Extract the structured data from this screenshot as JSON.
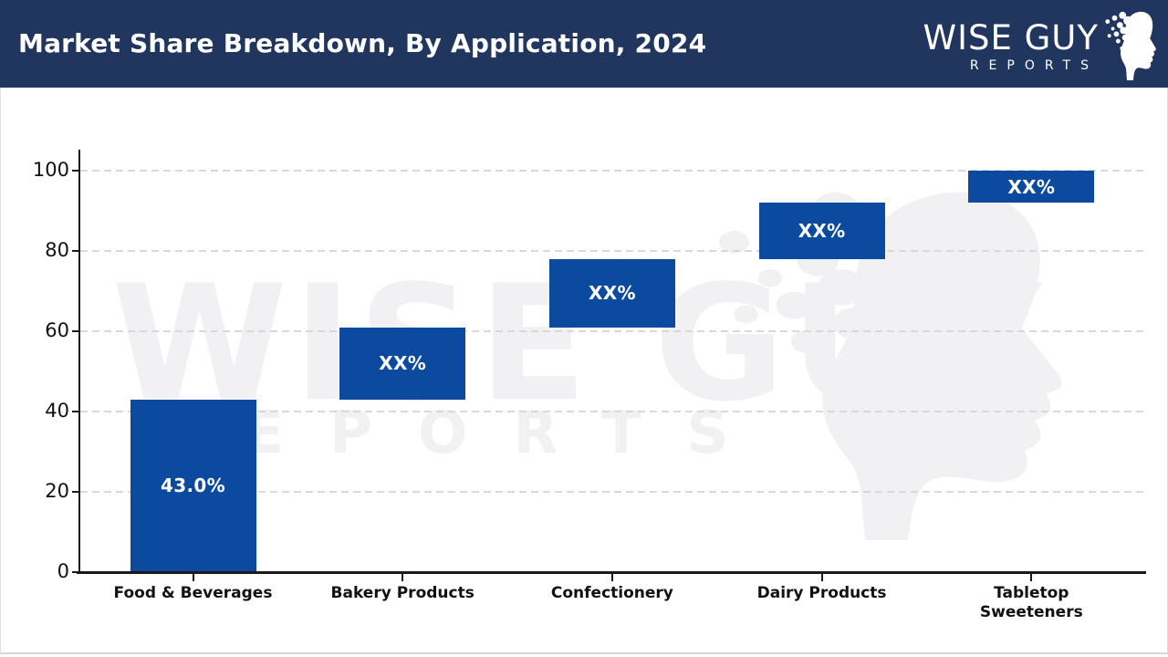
{
  "header": {
    "title": "Market Share Breakdown, By Application, 2024",
    "logo": {
      "line1": "WISE GUY",
      "line2": "REPORTS"
    }
  },
  "watermark": {
    "line1": "WISE GUY",
    "line2": "REPORTS"
  },
  "colors": {
    "header_bg": "#21365e",
    "bar_blue": "#0b4a9e",
    "bar_label": "#ffffff",
    "watermark_gray": "#f1f1f3",
    "gridline_gray": "#d9d9d9",
    "axis_black": "#1a1a1a"
  },
  "chart_data": {
    "type": "bar",
    "subtype": "floating-waterfall",
    "title": "Market Share Breakdown, By Application, 2024",
    "xlabel": "",
    "ylabel": "",
    "ylim": [
      0,
      105
    ],
    "yticks": [
      0,
      20,
      40,
      60,
      80,
      100
    ],
    "grid": "horizontal-dashed",
    "legend": "none",
    "bar_color": "#0b4a9e",
    "categories": [
      "Food & Beverages",
      "Bakery Products",
      "Confectionery",
      "Dairy Products",
      "Tabletop Sweeteners"
    ],
    "bars": [
      {
        "category": "Food & Beverages",
        "start": 0,
        "end": 43,
        "value": 43.0,
        "label": "43.0%"
      },
      {
        "category": "Bakery Products",
        "start": 43,
        "end": 61,
        "value": 18.0,
        "label": "XX%"
      },
      {
        "category": "Confectionery",
        "start": 61,
        "end": 78,
        "value": 17.0,
        "label": "XX%"
      },
      {
        "category": "Dairy Products",
        "start": 78,
        "end": 92,
        "value": 14.0,
        "label": "XX%"
      },
      {
        "category": "Tabletop Sweeteners",
        "start": 92,
        "end": 100,
        "value": 8.0,
        "label": "XX%"
      }
    ]
  }
}
